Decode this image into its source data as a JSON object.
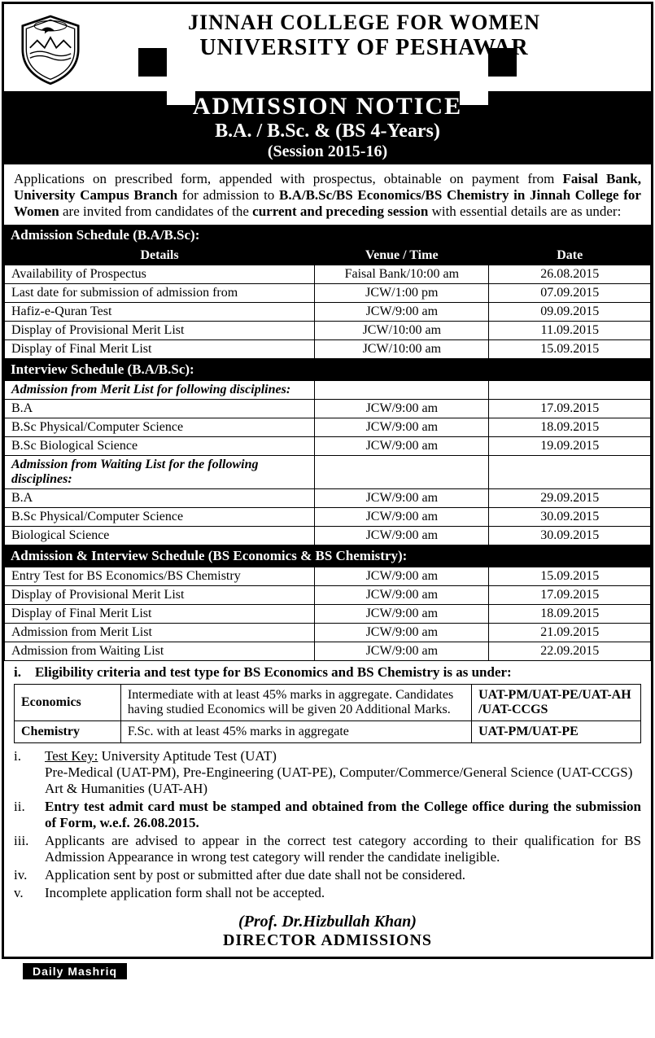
{
  "header": {
    "college": "JINNAH COLLEGE FOR WOMEN",
    "university": "UNIVERSITY OF PESHAWAR",
    "notice": "ADMISSION NOTICE",
    "programs": "B.A. / B.Sc. & (BS 4-Years)",
    "session": "(Session 2015-16)"
  },
  "intro": {
    "p1a": "Applications on prescribed form, appended with prospectus, obtainable on payment from ",
    "p1b": "Faisal Bank, University Campus Branch",
    "p1c": " for admission to ",
    "p1d": "B.A/B.Sc/BS Economics/BS Chemistry in Jinnah College for Women",
    "p1e": " are invited from candidates of the ",
    "p1f": "current and preceding session",
    "p1g": " with essential details are as under:"
  },
  "sections": {
    "s1": "Admission Schedule (B.A/B.Sc):",
    "s2": "Interview Schedule (B.A/B.Sc):",
    "s3": "Admission & Interview Schedule (BS Economics & BS Chemistry):"
  },
  "columns": {
    "c1": "Details",
    "c2": "Venue / Time",
    "c3": "Date"
  },
  "adm_schedule": [
    {
      "d": "Availability of Prospectus",
      "v": "Faisal Bank/10:00 am",
      "dt": "26.08.2015"
    },
    {
      "d": "Last date for submission of admission from",
      "v": "JCW/1:00 pm",
      "dt": "07.09.2015"
    },
    {
      "d": "Hafiz-e-Quran Test",
      "v": "JCW/9:00 am",
      "dt": "09.09.2015"
    },
    {
      "d": "Display of Provisional Merit List",
      "v": "JCW/10:00 am",
      "dt": "11.09.2015"
    },
    {
      "d": "Display of Final Merit List",
      "v": "JCW/10:00 am",
      "dt": "15.09.2015"
    }
  ],
  "interview_sub1": "Admission from Merit List for following disciplines:",
  "interview_merit": [
    {
      "d": "B.A",
      "v": "JCW/9:00 am",
      "dt": "17.09.2015"
    },
    {
      "d": "B.Sc Physical/Computer Science",
      "v": "JCW/9:00 am",
      "dt": "18.09.2015"
    },
    {
      "d": "B.Sc Biological Science",
      "v": "JCW/9:00 am",
      "dt": "19.09.2015"
    }
  ],
  "interview_sub2": "Admission from Waiting List for the following disciplines:",
  "interview_wait": [
    {
      "d": "B.A",
      "v": "JCW/9:00 am",
      "dt": "29.09.2015"
    },
    {
      "d": "B.Sc Physical/Computer Science",
      "v": "JCW/9:00 am",
      "dt": "30.09.2015"
    },
    {
      "d": "Biological Science",
      "v": "JCW/9:00 am",
      "dt": "30.09.2015"
    }
  ],
  "bs_schedule": [
    {
      "d": "Entry Test for BS Economics/BS Chemistry",
      "v": "JCW/9:00 am",
      "dt": "15.09.2015"
    },
    {
      "d": "Display of Provisional Merit List",
      "v": "JCW/9:00 am",
      "dt": "17.09.2015"
    },
    {
      "d": "Display of Final Merit List",
      "v": "JCW/9:00 am",
      "dt": "18.09.2015"
    },
    {
      "d": "Admission from Merit List",
      "v": "JCW/9:00 am",
      "dt": "21.09.2015"
    },
    {
      "d": "Admission from Waiting List",
      "v": "JCW/9:00 am",
      "dt": "22.09.2015"
    }
  ],
  "elig_heading": "i. Eligibility criteria and test type for BS Economics and BS Chemistry is as under:",
  "eligibility": [
    {
      "subj": "Economics",
      "desc": "Intermediate with at least 45% marks in aggregate. Candidates having studied Economics will be given 20 Additional Marks.",
      "codes": "UAT-PM/UAT-PE/UAT-AH /UAT-CCGS"
    },
    {
      "subj": "Chemistry",
      "desc": "F.Sc. with at least 45% marks in aggregate",
      "codes": "UAT-PM/UAT-PE"
    }
  ],
  "notes": [
    {
      "n": "i.",
      "key_label": "Test Key:",
      "t": " University Aptitude Test (UAT)",
      "extra1": "Pre-Medical (UAT-PM), Pre-Engineering (UAT-PE), Computer/Commerce/General Science (UAT-CCGS)",
      "extra2": "Art & Humanities (UAT-AH)"
    },
    {
      "n": "ii.",
      "bold": true,
      "t": "Entry test admit card must be stamped and obtained from the College office during the submission of Form, w.e.f. 26.08.2015."
    },
    {
      "n": "iii.",
      "t": "Applicants are advised to appear in the correct test category according to their qualification for BS Admission Appearance in wrong test category will render the candidate ineligible."
    },
    {
      "n": "iv.",
      "t": "Application sent by post or submitted after due date shall not be considered."
    },
    {
      "n": "v.",
      "t": "Incomplete application form shall not be accepted."
    }
  ],
  "signature": {
    "name": "(Prof. Dr.Hizbullah Khan)",
    "title": "DIRECTOR ADMISSIONS"
  },
  "footer": "Daily  Mashriq"
}
